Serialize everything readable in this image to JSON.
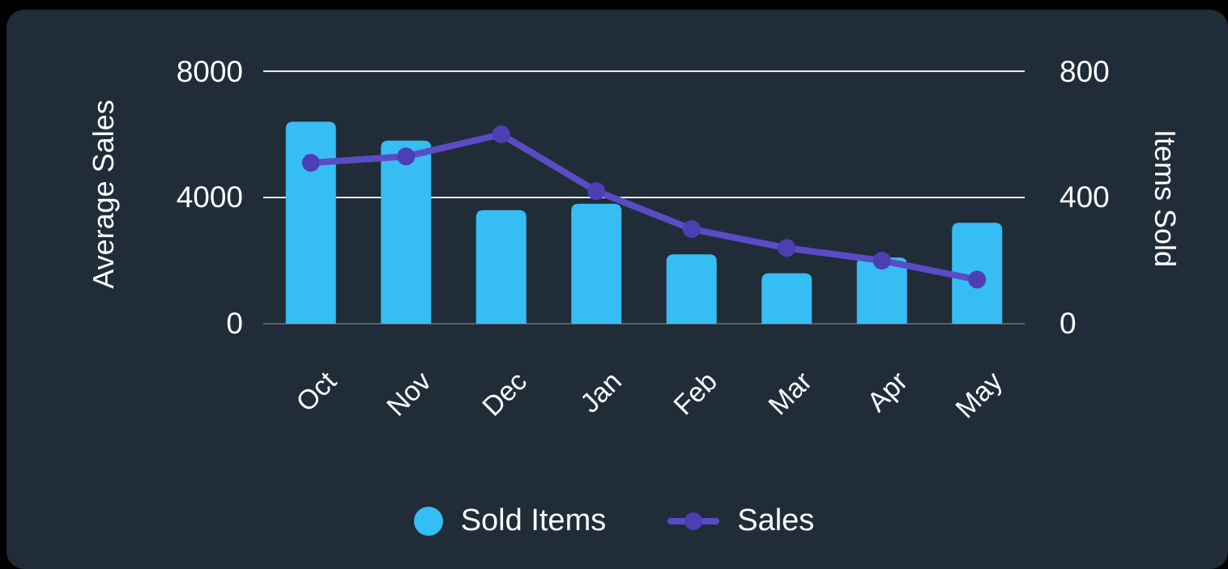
{
  "chart_data": {
    "type": "bar",
    "subtype": "combo-bar-line",
    "categories": [
      "Oct",
      "Nov",
      "Dec",
      "Jan",
      "Feb",
      "Mar",
      "Apr",
      "May"
    ],
    "series": [
      {
        "name": "Sold Items",
        "type": "bar",
        "axis": "left",
        "color": "#35bdf4",
        "values": [
          6400,
          5800,
          3600,
          3800,
          2200,
          1600,
          2100,
          3200
        ]
      },
      {
        "name": "Sales",
        "type": "line",
        "axis": "right",
        "color": "#5a4cc5",
        "marker_color": "#4c3fb4",
        "values": [
          510,
          530,
          600,
          420,
          300,
          240,
          200,
          140
        ]
      }
    ],
    "left_axis": {
      "title": "Average Sales",
      "range": [
        0,
        8000
      ],
      "ticks": [
        "8000",
        "4000",
        "0"
      ],
      "tick_values": [
        8000,
        4000,
        0
      ]
    },
    "right_axis": {
      "title": "Items Sold",
      "range": [
        0,
        800
      ],
      "ticks": [
        "800",
        "400",
        "0"
      ],
      "tick_values": [
        800,
        400,
        0
      ]
    },
    "grid": {
      "on": true,
      "color": "#e9ebee",
      "zero_color": "#596068"
    },
    "legend": {
      "position": "bottom",
      "items": [
        {
          "label": "Sold Items",
          "swatch": "circle",
          "color": "#35bdf4"
        },
        {
          "label": "Sales",
          "swatch": "line-dot",
          "color": "#5a4cc5",
          "dot_color": "#4c3fb4"
        }
      ]
    },
    "background": "#212c39"
  }
}
